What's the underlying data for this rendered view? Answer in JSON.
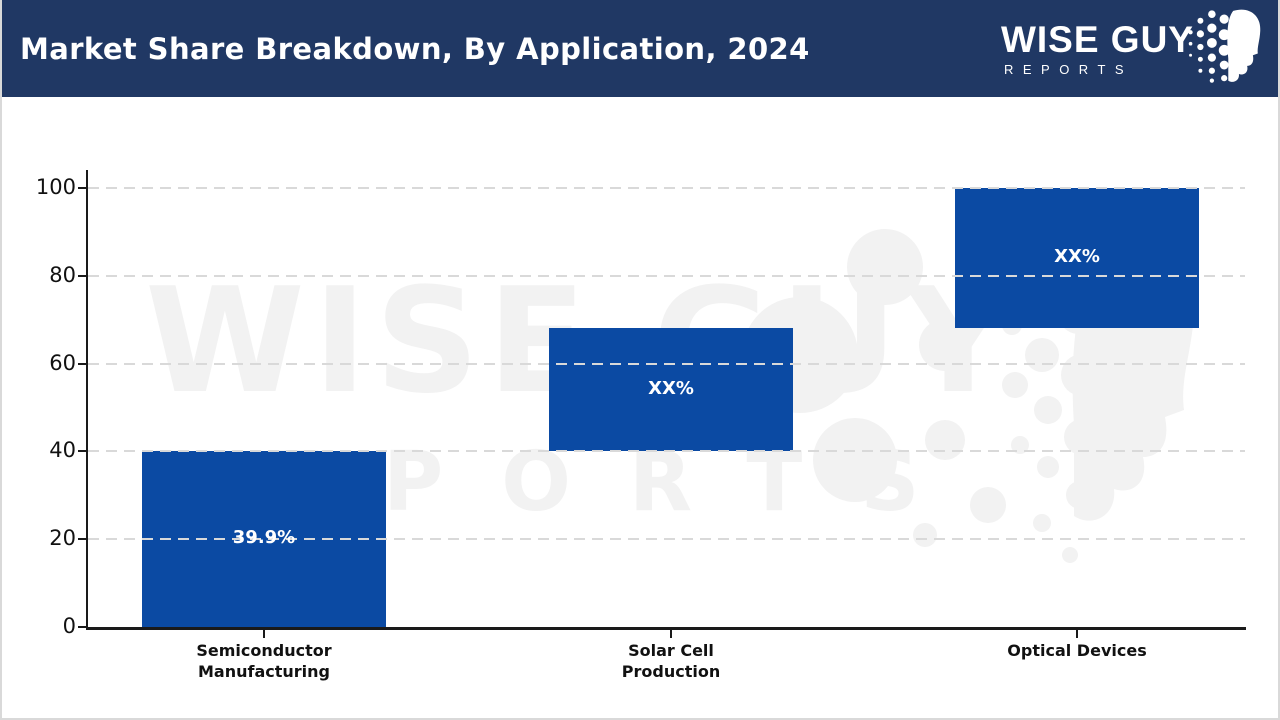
{
  "header": {
    "title": "Market Share Breakdown, By Application, 2024",
    "logo": {
      "wordmark": "WISE GUY",
      "reports": "REPORTS"
    }
  },
  "watermark": {
    "line1": "WISE GUY",
    "line2": "REPORTS"
  },
  "colors": {
    "header_bg": "#203864",
    "bar_fill": "#0b4aa3",
    "bar_label": "#ffffff",
    "grid_line": "#d9d9d9",
    "axis_line": "#1a1a1a",
    "tick_text": "#111111",
    "watermark": "#f2f2f2"
  },
  "chart_data": {
    "type": "bar",
    "subtype": "floating-segment-bars",
    "title": "Market Share Breakdown, By Application, 2024",
    "xlabel": "",
    "ylabel": "",
    "ylim": [
      0,
      100
    ],
    "yticks": [
      0,
      20,
      40,
      60,
      80,
      100
    ],
    "grid": "horizontal-dashed",
    "legend": "none",
    "categories": [
      "Semiconductor Manufacturing",
      "Solar Cell Production",
      "Optical Devices"
    ],
    "category_lines": [
      [
        "Semiconductor",
        "Manufacturing"
      ],
      [
        "Solar Cell",
        "Production"
      ],
      [
        "Optical Devices"
      ]
    ],
    "bars": [
      {
        "category": "Semiconductor Manufacturing",
        "start": 0,
        "end": 40,
        "label": "39.9%"
      },
      {
        "category": "Solar Cell Production",
        "start": 40,
        "end": 68,
        "label": "XX%"
      },
      {
        "category": "Optical Devices",
        "start": 68,
        "end": 100,
        "label": "XX%"
      }
    ]
  }
}
